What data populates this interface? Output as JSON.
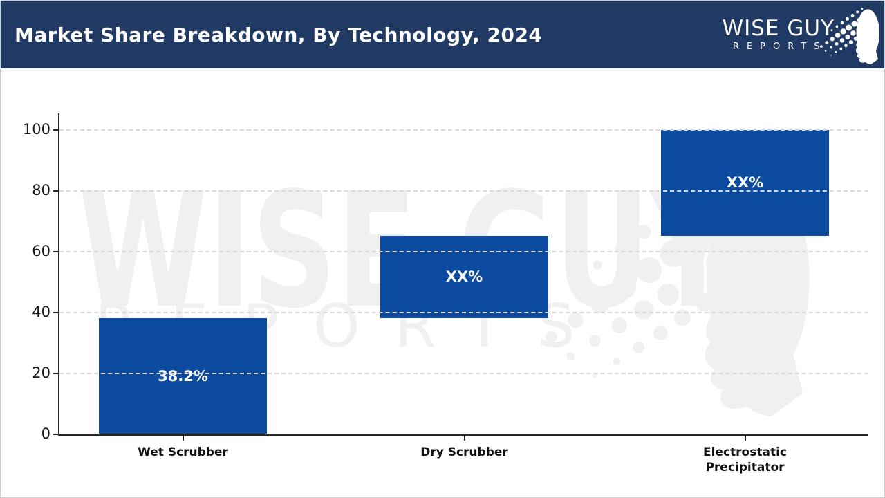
{
  "header": {
    "bg_color": "#213a64",
    "title": "Market Share Breakdown, By Technology, 2024",
    "logo": {
      "wordmark": "WISE GUY",
      "subtitle": "REPORTS"
    }
  },
  "watermark": {
    "wordmark": "WISE GUY",
    "subtitle": "REPORTS",
    "color": "#f0f0f2"
  },
  "chart_data": {
    "type": "bar",
    "subtype": "waterfall",
    "title": "Market Share Breakdown, By Technology, 2024",
    "categories": [
      "Wet Scrubber",
      "Dry Scrubber",
      "Electrostatic Precipitator"
    ],
    "segments": [
      {
        "category": "Wet Scrubber",
        "start": 0,
        "end": 38.2,
        "label": "38.2%"
      },
      {
        "category": "Dry Scrubber",
        "start": 38.2,
        "end": 65.3,
        "label": "XX%"
      },
      {
        "category": "Electrostatic Precipitator",
        "start": 65.3,
        "end": 100,
        "label": "XX%"
      }
    ],
    "ylim": [
      0,
      105
    ],
    "yticks": [
      0,
      20,
      40,
      60,
      80,
      100
    ],
    "grid": "horizontal-dashed",
    "legend": "none",
    "colors": {
      "bar": "#0b4a9e",
      "axis": "#262626",
      "grid": "#d9d9d9",
      "tick_text": "#1a1a1a",
      "bar_label_text": "#ffffff"
    }
  }
}
